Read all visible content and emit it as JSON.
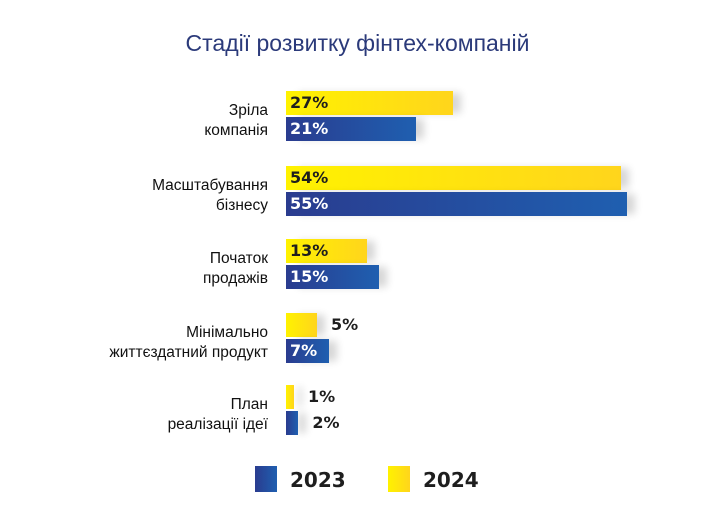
{
  "chart_data": {
    "type": "bar",
    "orientation": "horizontal",
    "title": "Стадії розвитку фінтех-компаній",
    "categories": [
      "Зріла\nкомпанія",
      "Масштабування\nбізнесу",
      "Початок\nпродажів",
      "Мінімально\nжиттєздатний продукт",
      "План\nреалізації ідеї"
    ],
    "series": [
      {
        "name": "2024",
        "color": "#ffe014",
        "values": [
          27,
          54,
          13,
          5,
          1
        ],
        "labels": [
          "27%",
          "54%",
          "13%",
          "5%",
          "1%"
        ]
      },
      {
        "name": "2023",
        "color": "#27418f",
        "values": [
          21,
          55,
          15,
          7,
          2
        ],
        "labels": [
          "21%",
          "55%",
          "15%",
          "7%",
          "2%"
        ]
      }
    ],
    "legend": {
      "position": "bottom",
      "items": [
        {
          "label": "2023",
          "color": "#27418f"
        },
        {
          "label": "2024",
          "color": "#ffe014"
        }
      ]
    },
    "xlim": [
      0,
      55
    ],
    "grid": false
  }
}
